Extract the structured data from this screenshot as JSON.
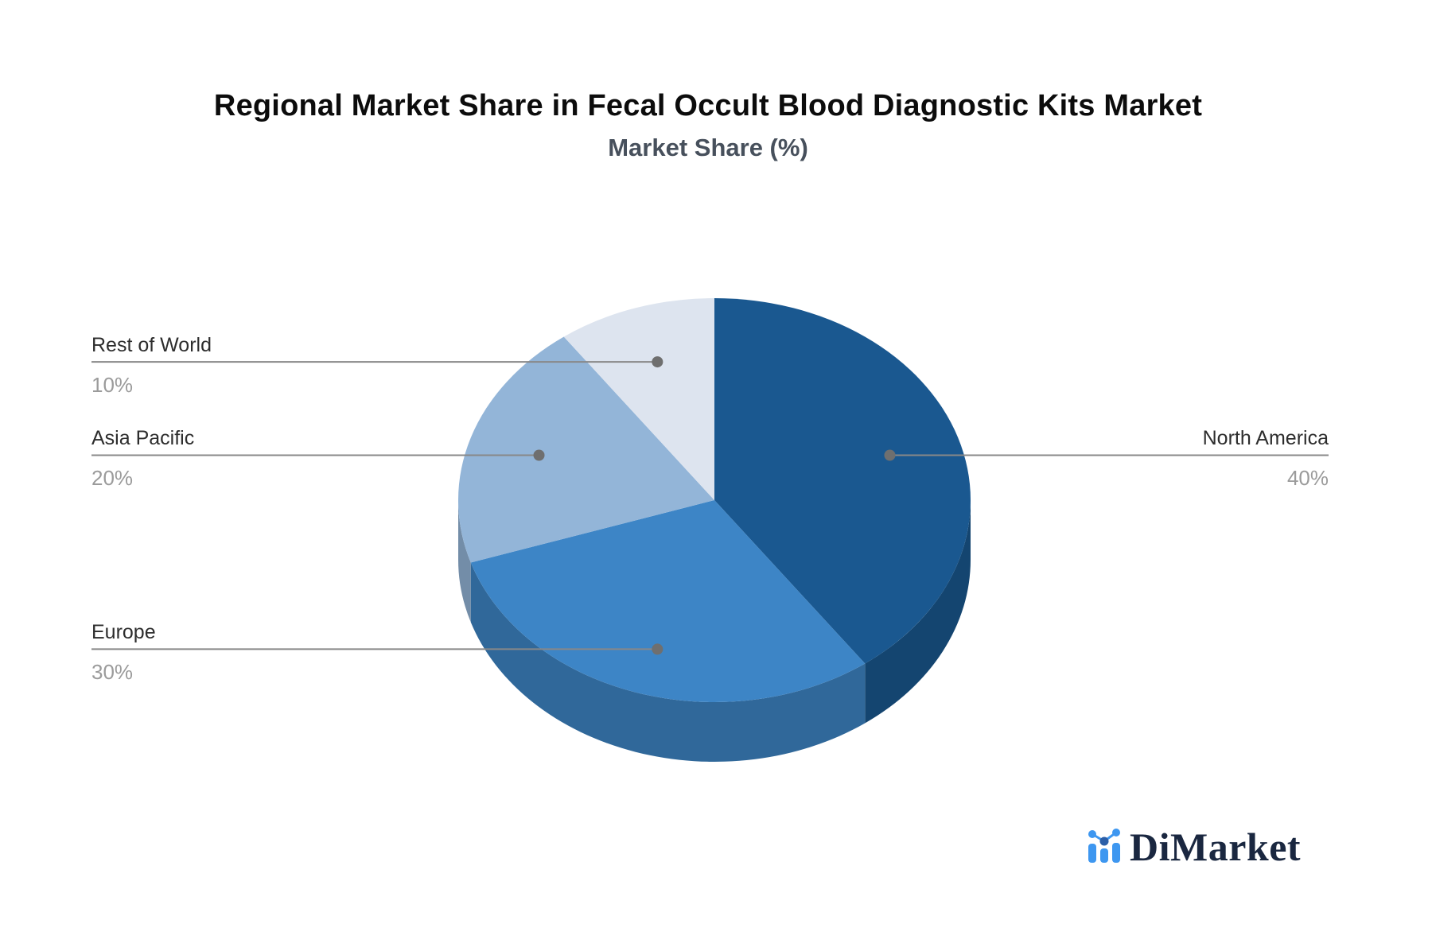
{
  "title": "Regional Market Share in Fecal Occult Blood Diagnostic Kits Market",
  "subtitle": "Market Share (%)",
  "chart_data": {
    "type": "pie",
    "style": "3d",
    "start_angle": "12-oclock",
    "direction": "clockwise",
    "title": "Regional Market Share in Fecal Occult Blood Diagnostic Kits Market",
    "subtitle": "Market Share (%)",
    "unit": "%",
    "legend_position": "callout-labels",
    "slices": [
      {
        "label": "North America",
        "value": 40,
        "display": "40%",
        "color": "#1a5890"
      },
      {
        "label": "Europe",
        "value": 30,
        "display": "30%",
        "color": "#3d85c6"
      },
      {
        "label": "Asia Pacific",
        "value": 20,
        "display": "20%",
        "color": "#93b5d8"
      },
      {
        "label": "Rest of World",
        "value": 10,
        "display": "10%",
        "color": "#dde4ef"
      }
    ]
  },
  "branding": {
    "logo_text": "DiMarket",
    "logo_icon": "bar-line-chart-icon",
    "logo_text_color": "#1a2740",
    "logo_accent": "#3e97f0",
    "logo_accent_dark": "#2c5fa8"
  },
  "colors": {
    "background": "#ffffff",
    "leader_line": "#888888",
    "callout_dot": "#6f6f6f",
    "label_text": "#2d2d2d",
    "percent_text": "#9b9b9b",
    "title_text": "#0c0c0c",
    "subtitle_text": "#47505c"
  }
}
